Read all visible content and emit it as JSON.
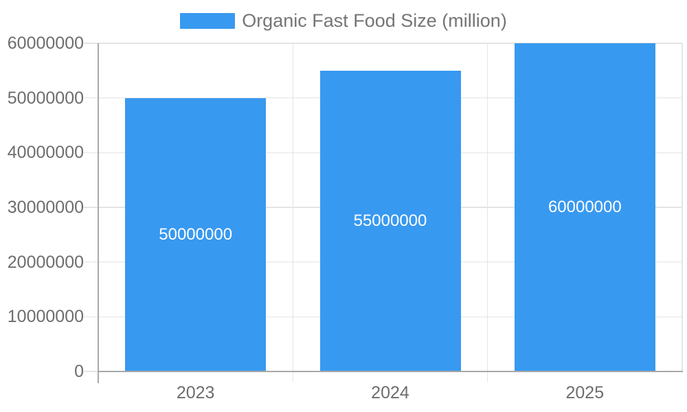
{
  "chart_data": {
    "type": "bar",
    "title": "Organic Fast Food Size (million)",
    "legend": {
      "label": "Organic Fast Food Size (million)",
      "position": "top"
    },
    "categories": [
      "2023",
      "2024",
      "2025"
    ],
    "series": [
      {
        "name": "Organic Fast Food Size (million)",
        "values": [
          50000000,
          55000000,
          60000000
        ],
        "data_labels": [
          "50000000",
          "55000000",
          "60000000"
        ]
      }
    ],
    "xlabel": "",
    "ylabel": "",
    "ylim": [
      0,
      60000000
    ],
    "yticks": [
      0,
      10000000,
      20000000,
      30000000,
      40000000,
      50000000,
      60000000
    ],
    "ytick_labels": [
      "0",
      "10000000",
      "20000000",
      "30000000",
      "40000000",
      "50000000",
      "60000000"
    ],
    "grid": {
      "horizontal": true,
      "vertical": true
    }
  },
  "colors": {
    "bar": "#3899f0",
    "grid": "#e4e4e4",
    "axis": "#a8a8a8",
    "tick_text": "#6d6d6d",
    "legend_text": "#757575",
    "bar_label_text": "#ffffff",
    "background": "#ffffff"
  }
}
